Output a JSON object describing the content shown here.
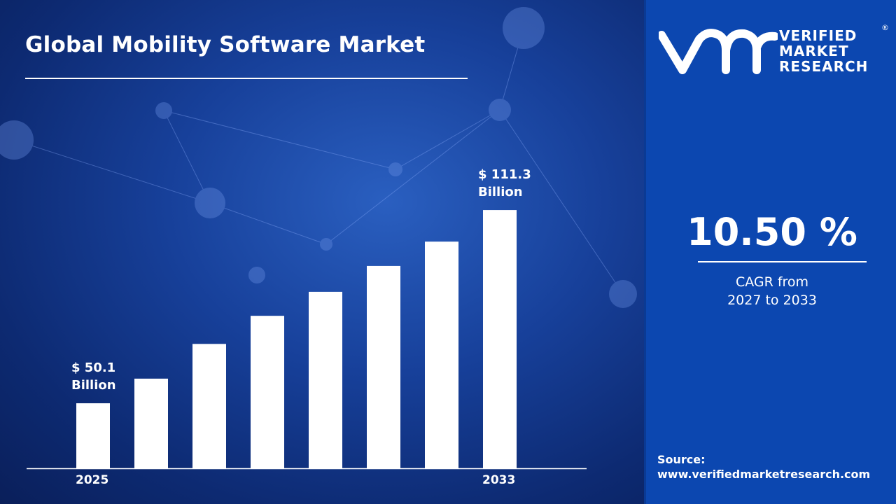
{
  "title": "Global Mobility Software Market",
  "chart_data": {
    "type": "bar",
    "title": "Global Mobility Software Market",
    "categories": [
      "2025",
      "",
      "",
      "",
      "",
      "",
      "",
      "2033"
    ],
    "values": [
      50.1,
      57.9,
      68.9,
      77.8,
      85.4,
      93.6,
      101.3,
      111.3
    ],
    "data_labels": [
      {
        "index": 0,
        "line1": "$ 50.1",
        "line2": "Billion"
      },
      {
        "index": 7,
        "line1": "$ 111.3",
        "line2": "Billion"
      }
    ],
    "xlabel": "",
    "ylabel": "",
    "ylim": [
      29.5,
      140
    ],
    "grid": false,
    "bar_color": "#ffffff"
  },
  "brand": {
    "line1": "VERIFIED",
    "line2": "MARKET",
    "line3": "RESEARCH",
    "logo_letters": "vmr",
    "registered": "®"
  },
  "cagr": {
    "value": "10.50 %",
    "label_line1": "CAGR from",
    "label_line2": "2027 to 2033"
  },
  "source": {
    "label": "Source:",
    "url": "www.verifiedmarketresearch.com"
  },
  "colors": {
    "panel": "#0c47b0",
    "background": "#17409a",
    "bars": "#ffffff"
  }
}
